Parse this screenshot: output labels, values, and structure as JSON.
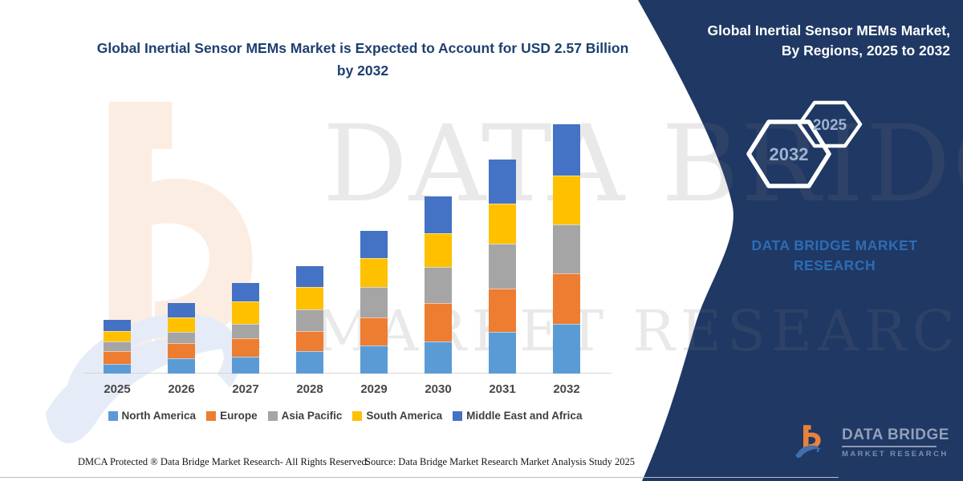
{
  "chart_data": {
    "type": "bar",
    "stacked": true,
    "unit": "USD Billion",
    "title": "Global Inertial Sensor MEMs Market is Expected to Account for USD 2.57 Billion by 2032",
    "categories": [
      "2025",
      "2026",
      "2027",
      "2028",
      "2029",
      "2030",
      "2031",
      "2032"
    ],
    "series": [
      {
        "name": "North America",
        "color": "#5B9BD5",
        "values": [
          0.1,
          0.16,
          0.17,
          0.23,
          0.29,
          0.33,
          0.43,
          0.51
        ]
      },
      {
        "name": "Europe",
        "color": "#ED7D31",
        "values": [
          0.13,
          0.15,
          0.19,
          0.21,
          0.29,
          0.4,
          0.45,
          0.52
        ]
      },
      {
        "name": "Asia Pacific",
        "color": "#A5A5A5",
        "values": [
          0.1,
          0.12,
          0.15,
          0.22,
          0.31,
          0.37,
          0.46,
          0.51
        ]
      },
      {
        "name": "South America",
        "color": "#FFC000",
        "values": [
          0.11,
          0.15,
          0.23,
          0.23,
          0.3,
          0.35,
          0.41,
          0.5
        ]
      },
      {
        "name": "Middle East and Africa",
        "color": "#4472C4",
        "values": [
          0.11,
          0.15,
          0.19,
          0.22,
          0.28,
          0.38,
          0.46,
          0.53
        ]
      }
    ],
    "totals": [
      0.55,
      0.73,
      0.93,
      1.11,
      1.47,
      1.83,
      2.21,
      2.57
    ],
    "xlabel": "",
    "ylabel": "",
    "y_axis_visible": false,
    "gridlines": false,
    "legend_position": "bottom"
  },
  "chart": {
    "title": "Global Inertial Sensor MEMs Market is Expected to Account for USD 2.57 Billion by 2032"
  },
  "panel": {
    "bg_color": "#1f3864",
    "title_line1": "Global Inertial Sensor MEMs Market,",
    "title_line2": "By Regions, 2025 to 2032",
    "hexagons": [
      {
        "label": "2032"
      },
      {
        "label": "2025"
      }
    ],
    "brand_line1": "DATA BRIDGE MARKET",
    "brand_line2": "RESEARCH"
  },
  "footer": {
    "dmca": "DMCA Protected ® Data Bridge Market Research- All Rights Reserved.",
    "source": "Source: Data Bridge Market Research Market Analysis Study 2025"
  },
  "logo": {
    "icon": "data-bridge-b-swoosh-icon",
    "name": "DATA BRIDGE",
    "subtext": "MARKET RESEARCH"
  },
  "watermark": {
    "line1": "DATA BRIDGE",
    "line2": "MARKET RESEARCH"
  }
}
